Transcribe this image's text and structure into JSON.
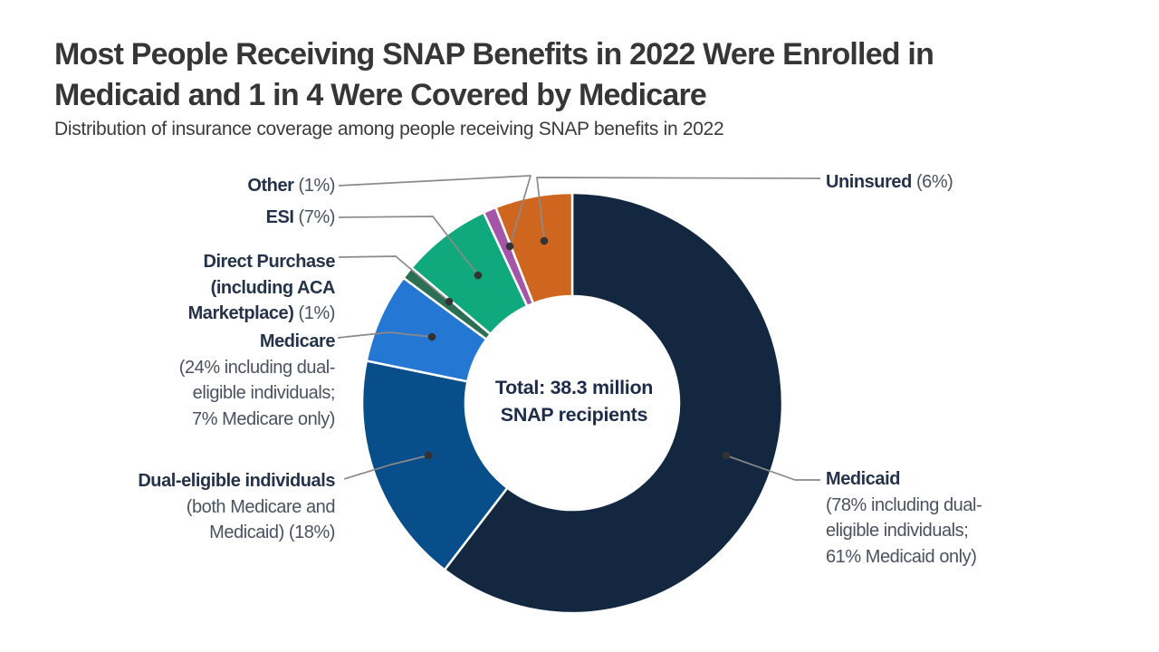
{
  "header": {
    "title_line1": "Most People Receiving SNAP Benefits in 2022 Were Enrolled in",
    "title_line2": "Medicaid and 1 in 4 Were Covered by Medicare",
    "subtitle": "Distribution of insurance coverage among people receiving SNAP benefits in 2022"
  },
  "center_label": {
    "line1": "Total: 38.3 million",
    "line2": "SNAP recipients"
  },
  "chart_data": {
    "type": "pie",
    "donut": true,
    "title": "Most People Receiving SNAP Benefits in 2022 Were Enrolled in Medicaid and 1 in 4 Were Covered by Medicare",
    "subtitle": "Distribution of insurance coverage among people receiving SNAP benefits in 2022",
    "center_label": "Total: 38.3 million SNAP recipients",
    "total_population_millions": 38.3,
    "start_angle_deg": 0,
    "direction": "clockwise",
    "series": [
      {
        "id": "medicaid",
        "name": "Medicaid only",
        "value": 61,
        "percent_label": "78% including dual-eligible individuals; 61% Medicaid only",
        "color": "#132840"
      },
      {
        "id": "dual",
        "name": "Dual-eligible individuals (both Medicare and Medicaid)",
        "value": 18,
        "percent_label": "18%",
        "color": "#084e8b"
      },
      {
        "id": "medicare",
        "name": "Medicare only",
        "value": 7,
        "percent_label": "24% including dual-eligible individuals; 7% Medicare only",
        "color": "#2478d4"
      },
      {
        "id": "direct",
        "name": "Direct Purchase (including ACA Marketplace)",
        "value": 1,
        "percent_label": "1%",
        "color": "#2b6e53"
      },
      {
        "id": "esi",
        "name": "ESI",
        "value": 7,
        "percent_label": "7%",
        "color": "#10a87d"
      },
      {
        "id": "other",
        "name": "Other",
        "value": 1,
        "percent_label": "1%",
        "color": "#a355a8"
      },
      {
        "id": "uninsured",
        "name": "Uninsured",
        "value": 6,
        "percent_label": "6%",
        "color": "#cf661f"
      }
    ]
  },
  "labels": [
    {
      "id": "other",
      "side": "left",
      "lines": [
        {
          "bold": "Other",
          "normal": " (1%)"
        }
      ]
    },
    {
      "id": "esi",
      "side": "left",
      "lines": [
        {
          "bold": "ESI",
          "normal": " (7%)"
        }
      ]
    },
    {
      "id": "direct",
      "side": "left",
      "lines": [
        {
          "bold": "Direct Purchase"
        },
        {
          "bold": "(including ACA"
        },
        {
          "bold": "Marketplace)",
          "normal": " (1%)"
        }
      ]
    },
    {
      "id": "medicare",
      "side": "left",
      "lines": [
        {
          "bold": "Medicare"
        },
        {
          "normal": "(24% including dual-"
        },
        {
          "normal": "eligible individuals;"
        },
        {
          "normal": "7% Medicare only)"
        }
      ]
    },
    {
      "id": "dual",
      "side": "left",
      "lines": [
        {
          "bold": "Dual-eligible individuals"
        },
        {
          "normal": "(both Medicare and"
        },
        {
          "normal": "Medicaid) (18%)"
        }
      ]
    },
    {
      "id": "uninsured",
      "side": "right",
      "lines": [
        {
          "bold": "Uninsured",
          "normal": " (6%)"
        }
      ]
    },
    {
      "id": "medicaid",
      "side": "right",
      "lines": [
        {
          "bold": "Medicaid"
        },
        {
          "normal": "(78% including dual-"
        },
        {
          "normal": "eligible individuals;"
        },
        {
          "normal": "61% Medicaid only)"
        }
      ]
    }
  ]
}
